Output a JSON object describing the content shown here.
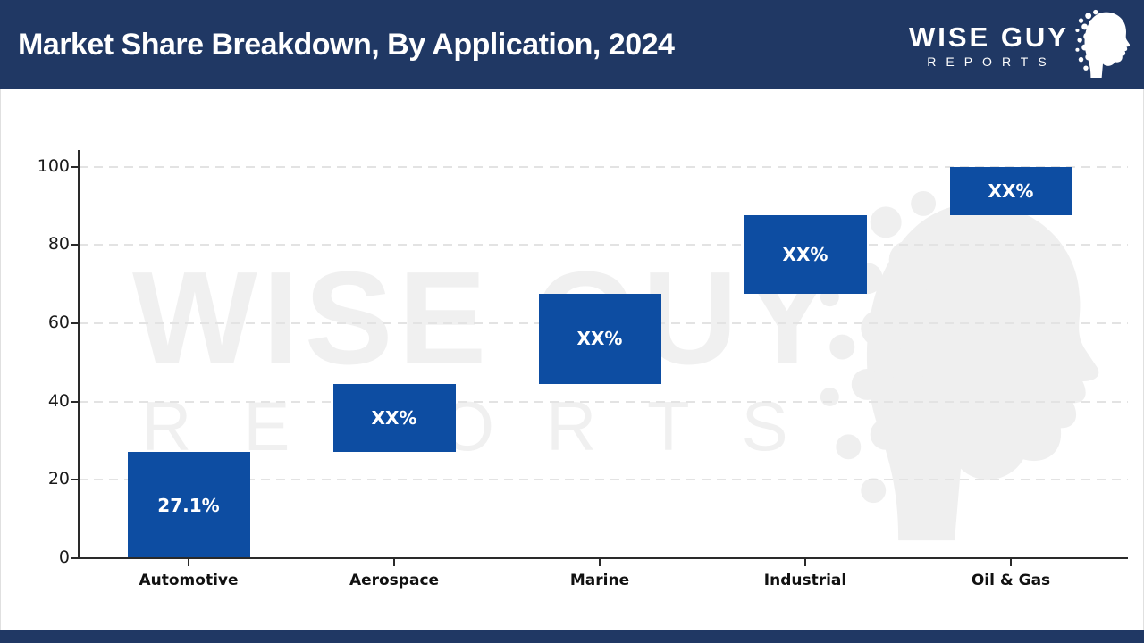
{
  "header": {
    "title": "Market Share Breakdown, By Application, 2024",
    "logo": {
      "line1": "WISE GUY",
      "line2": "REPORTS"
    }
  },
  "watermark": {
    "line1": "WISE GUY",
    "line2": "REPORTS"
  },
  "colors": {
    "header_bg": "#203864",
    "footer_bg": "#203864",
    "bar": "#0d4da2",
    "gridline": "#e3e3e3",
    "axis": "#2a2a2a",
    "watermark": "#f0f0f0",
    "tick_text": "#1a1a1a",
    "bar_label_text": "#ffffff"
  },
  "icons": {
    "logo_face": "dotted-head-profile-icon",
    "watermark_face": "dotted-head-profile-watermark"
  },
  "chart_data": {
    "type": "bar",
    "subtype": "floating-waterfall",
    "title": "Market Share Breakdown, By Application, 2024",
    "categories": [
      "Automotive",
      "Aerospace",
      "Marine",
      "Industrial",
      "Oil & Gas"
    ],
    "segments": [
      {
        "category": "Automotive",
        "start": 0,
        "end": 27.1,
        "label": "27.1%"
      },
      {
        "category": "Aerospace",
        "start": 27.1,
        "end": 44.5,
        "label": "XX%"
      },
      {
        "category": "Marine",
        "start": 44.5,
        "end": 67.5,
        "label": "XX%"
      },
      {
        "category": "Industrial",
        "start": 67.5,
        "end": 87.5,
        "label": "XX%"
      },
      {
        "category": "Oil & Gas",
        "start": 87.5,
        "end": 100,
        "label": "XX%"
      }
    ],
    "ylim": [
      0,
      100
    ],
    "yticks": [
      0,
      20,
      40,
      60,
      80,
      100
    ],
    "xlabel": "",
    "ylabel": "",
    "grid": "horizontal-dashed",
    "legend": "none",
    "bar_color": "#0d4da2"
  }
}
